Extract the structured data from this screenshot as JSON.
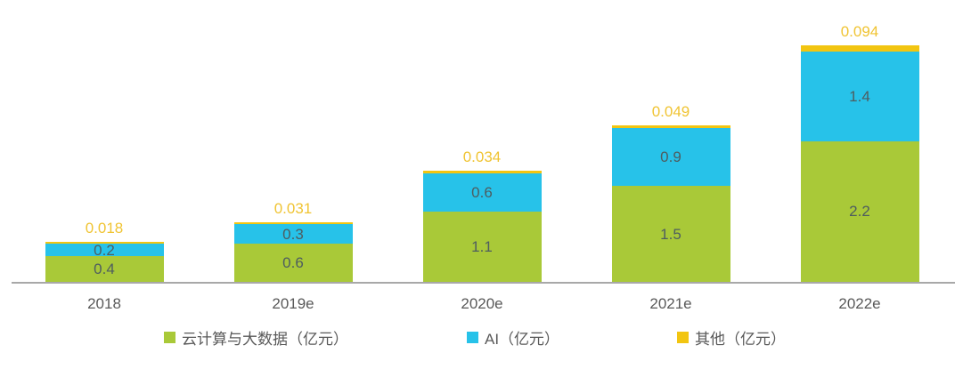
{
  "chart_data": {
    "type": "bar",
    "stacked": true,
    "title": "",
    "categories": [
      "2018",
      "2019e",
      "2020e",
      "2021e",
      "2022e"
    ],
    "series": [
      {
        "name": "云计算与大数据（亿元）",
        "color": "#a9c938",
        "values": [
          0.4,
          0.6,
          1.1,
          1.5,
          2.2
        ],
        "labels": [
          "0.4",
          "0.6",
          "1.1",
          "1.5",
          "2.2"
        ],
        "label_position": "inside"
      },
      {
        "name": "AI（亿元）",
        "color": "#27c2e9",
        "values": [
          0.2,
          0.3,
          0.6,
          0.9,
          1.4
        ],
        "labels": [
          "0.2",
          "0.3",
          "0.6",
          "0.9",
          "1.4"
        ],
        "label_position": "inside"
      },
      {
        "name": "其他（亿元）",
        "color": "#f2c511",
        "values": [
          0.018,
          0.031,
          0.034,
          0.049,
          0.094
        ],
        "labels": [
          "0.018",
          "0.031",
          "0.034",
          "0.049",
          "0.094"
        ],
        "label_position": "above-bar"
      }
    ],
    "ylim": [
      0,
      3.8
    ],
    "grid": false,
    "y_axis_visible": false,
    "legend_position": "bottom"
  },
  "style": {
    "background": "#ffffff",
    "axis_line": "#a8a8a8",
    "value_text": "#4e5d60",
    "axis_text": "#595959",
    "legend_text": "#595959",
    "above_bar_label_text": "#f0c433"
  }
}
